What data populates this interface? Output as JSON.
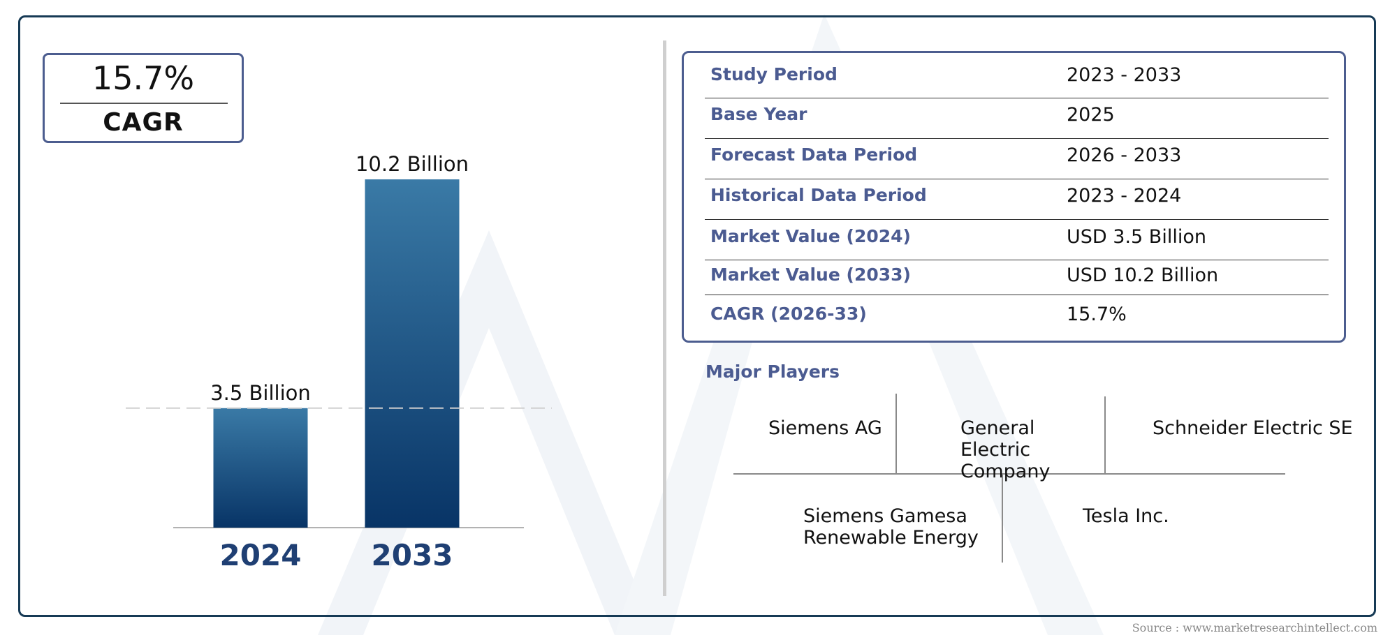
{
  "cagr": {
    "value": "15.7%",
    "label": "CAGR"
  },
  "chart_data": {
    "type": "bar",
    "categories": [
      "2024",
      "2033"
    ],
    "values": [
      3.5,
      10.2
    ],
    "data_labels": [
      "3.5 Billion",
      "10.2 Billion"
    ],
    "reference_line": 3.5,
    "ylim": [
      0,
      10.2
    ],
    "grid": false,
    "colors": {
      "bar_top": "#3a7aa6",
      "bar_bottom": "#083466",
      "category_text": "#1f3f73"
    }
  },
  "info_table": [
    {
      "key": "Study Period",
      "value": "2023 - 2033"
    },
    {
      "key": "Base Year",
      "value": "2025"
    },
    {
      "key": "Forecast Data Period",
      "value": "2026 - 2033"
    },
    {
      "key": "Historical Data Period",
      "value": "2023 - 2024"
    },
    {
      "key": "Market Value (2024)",
      "value": "USD 3.5 Billion"
    },
    {
      "key": "Market Value (2033)",
      "value": "USD 10.2 Billion"
    },
    {
      "key": "CAGR (2026-33)",
      "value": "15.7%"
    }
  ],
  "players": {
    "title": "Major Players",
    "items": [
      {
        "line1": "Siemens AG",
        "line2": "",
        "line3": ""
      },
      {
        "line1": "General",
        "line2": "Electric",
        "line3": "Company"
      },
      {
        "line1": "Schneider Electric SE",
        "line2": "",
        "line3": ""
      },
      {
        "line1": "Siemens Gamesa",
        "line2": "Renewable Energy",
        "line3": ""
      },
      {
        "line1": "Tesla Inc.",
        "line2": "",
        "line3": ""
      }
    ]
  },
  "source": "Source : www.marketresearchintellect.com",
  "colors": {
    "accent": "#4b5b91",
    "frame": "#163a55"
  }
}
